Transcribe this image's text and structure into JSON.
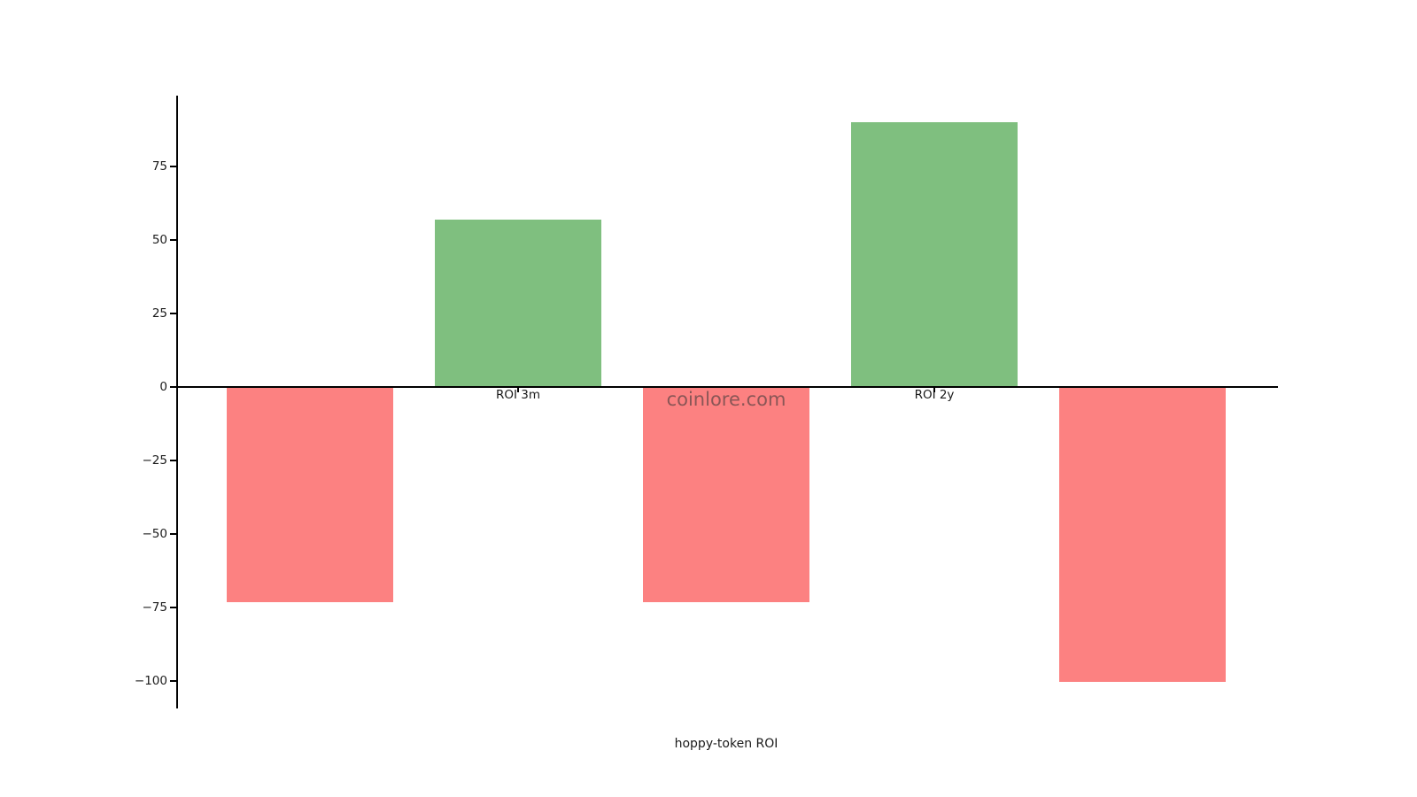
{
  "chart_data": {
    "type": "bar",
    "categories": [
      "",
      "ROI 3m",
      "",
      "ROI 2y",
      ""
    ],
    "values": [
      -73,
      57,
      -73,
      90,
      -100
    ],
    "bar_colors": [
      "#fc8181",
      "#7fbf7f",
      "#fc8181",
      "#7fbf7f",
      "#fc8181"
    ],
    "title": "",
    "xlabel": "hoppy-token ROI",
    "ylabel": "",
    "ylim": [
      -108,
      98
    ],
    "yticks": [
      75,
      50,
      25,
      0,
      -25,
      -50,
      -75,
      -100
    ],
    "ytick_labels": [
      "75",
      "50",
      "25",
      "0",
      "−25",
      "−50",
      "−75",
      "−100"
    ],
    "grid": false,
    "legend_position": "none"
  },
  "watermark": {
    "text": "coinlore.com",
    "color": "rgba(55,55,55,0.58)"
  },
  "colors": {
    "bar_positive": "#7fbf7f",
    "bar_negative": "#fc8181",
    "axis": "#000000",
    "tick_label": "#1a1a1a"
  }
}
